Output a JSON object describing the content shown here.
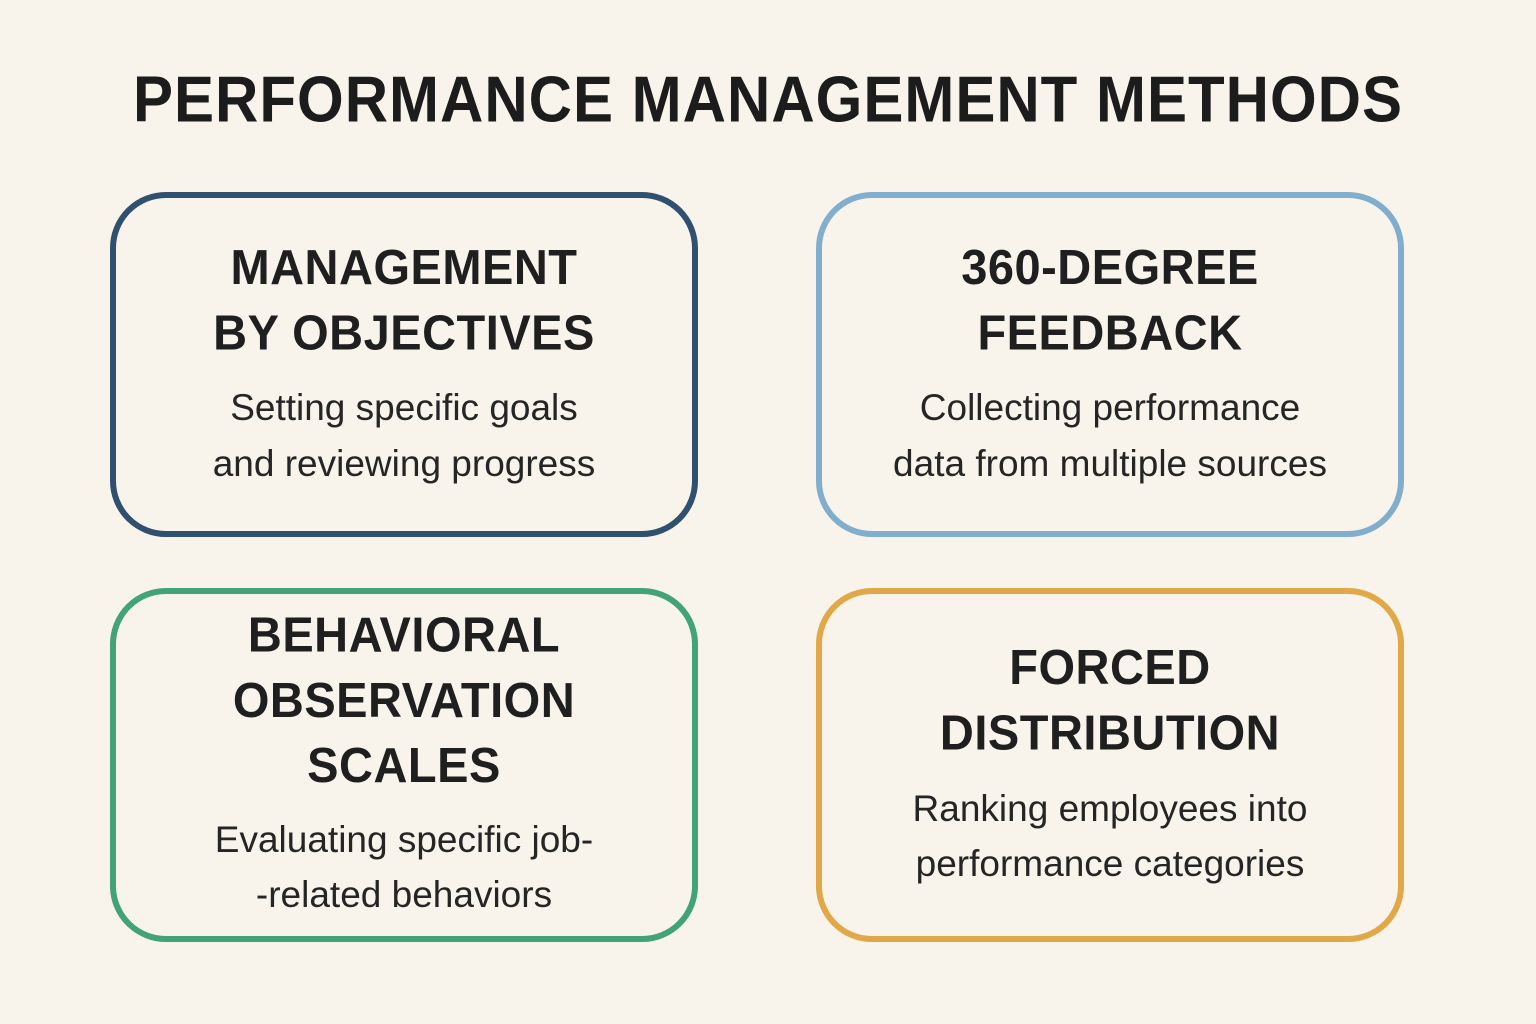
{
  "title": "PERFORMANCE MANAGEMENT METHODS",
  "colors": {
    "background": "#F8F4EC",
    "title_text": "#1C1C1C",
    "heading_text": "#1F1F1F",
    "body_text": "#252525",
    "navy_border": "#2F506E",
    "blue_border": "#82AECE",
    "green_border": "#42A378",
    "gold_border": "#E0A847"
  },
  "cards": [
    {
      "id": "management-by-objectives",
      "heading": "MANAGEMENT\nBY OBJECTIVES",
      "body": "Setting specific goals\nand reviewing progress",
      "border_color": "#2F506E"
    },
    {
      "id": "360-degree-feedback",
      "heading": "360-DEGREE\nFEEDBACK",
      "body": "Collecting performance\ndata from multiple sources",
      "border_color": "#82AECE"
    },
    {
      "id": "behavioral-observation-scales",
      "heading": "BEHAVIORAL\nOBSERVATION\nSCALES",
      "body": "Evaluating specific job-\n-related behaviors",
      "border_color": "#42A378"
    },
    {
      "id": "forced-distribution",
      "heading": "FORCED\nDISTRIBUTION",
      "body": "Ranking employees into\nperformance categories",
      "border_color": "#E0A847"
    }
  ]
}
